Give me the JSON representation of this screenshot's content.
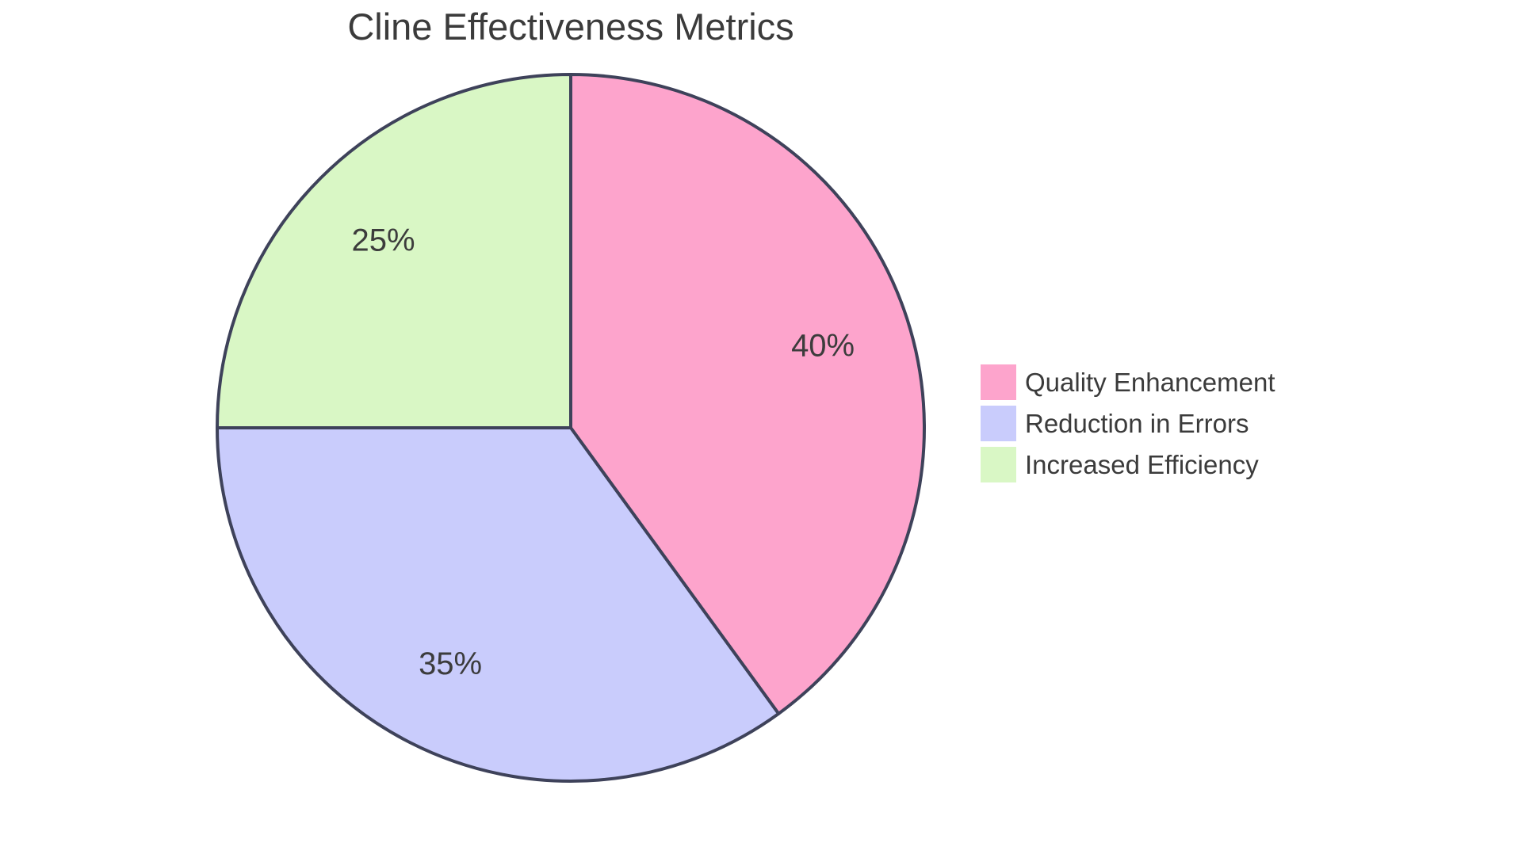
{
  "title": {
    "text": "Cline Effectiveness Metrics",
    "color": "#3b3b3b"
  },
  "chart_data": {
    "type": "pie",
    "title": "Cline Effectiveness Metrics",
    "labels": [
      "Quality Enhancement",
      "Reduction in Errors",
      "Increased Efficiency"
    ],
    "values": [
      40,
      35,
      25
    ],
    "percent_labels": [
      "40%",
      "35%",
      "25%"
    ],
    "colors": [
      "#FDA4CC",
      "#C9CCFC",
      "#D9F7C5"
    ],
    "border_color": "#3E425A",
    "border_width": 4,
    "start_angle_deg": 0,
    "direction": "clockwise",
    "label_color": "#3c3c3c",
    "label_radius_fraction": 0.75,
    "legend_position": "right",
    "background": "#ffffff"
  }
}
